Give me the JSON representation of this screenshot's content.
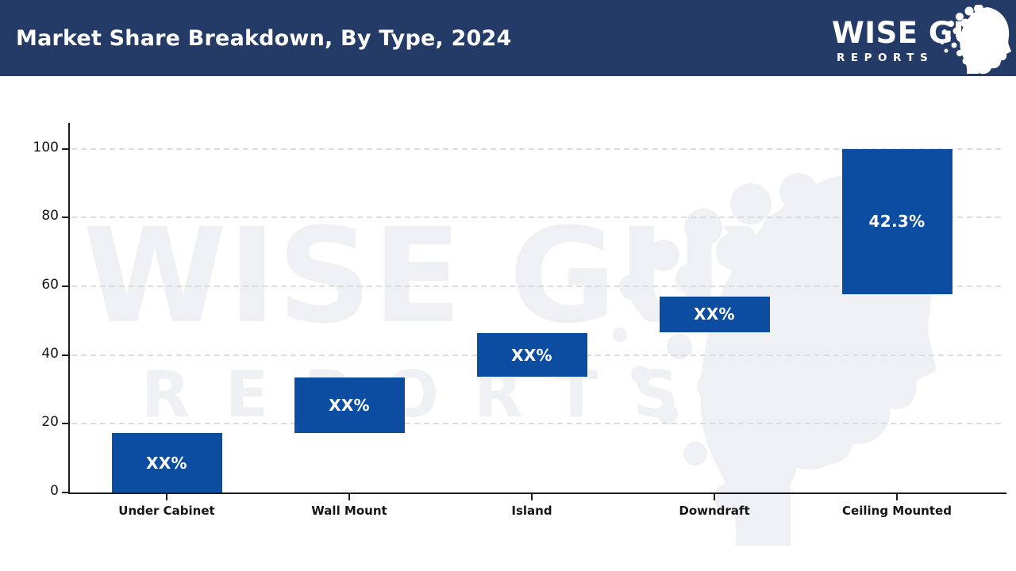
{
  "header": {
    "title": "Market Share Breakdown, By Type, 2024",
    "brand": {
      "name": "WISE GUY",
      "subtitle": "REPORTS",
      "head_icon": "head-profile-dots-icon"
    }
  },
  "watermark": {
    "line1": "WISE GUY",
    "line2": "REPORTS",
    "head_icon": "head-profile-dots-icon"
  },
  "colors": {
    "header_bg": "#243b67",
    "header_text": "#ffffff",
    "bar_fill": "#0c4da2",
    "bar_label": "#ffffff",
    "axis": "#1b1b1b",
    "tick_text": "#151515",
    "grid": "#dcdcdc",
    "watermark": "#eff0f3",
    "background": "#ffffff"
  },
  "chart_data": {
    "type": "bar",
    "variant": "waterfall",
    "title": "Market Share Breakdown, By Type, 2024",
    "xlabel": "",
    "ylabel": "",
    "ylim": [
      0,
      107.5
    ],
    "yticks": [
      0,
      20,
      40,
      60,
      80,
      100
    ],
    "grid": {
      "axis": "y",
      "style": "dashed"
    },
    "legend": null,
    "categories": [
      "Under Cabinet",
      "Wall Mount",
      "Island",
      "Downdraft",
      "Ceiling Mounted"
    ],
    "bars": [
      {
        "category": "Under Cabinet",
        "start": 0,
        "end": 17.3,
        "label": "XX%"
      },
      {
        "category": "Wall Mount",
        "start": 17.3,
        "end": 33.5,
        "label": "XX%"
      },
      {
        "category": "Island",
        "start": 33.6,
        "end": 46.4,
        "label": "XX%"
      },
      {
        "category": "Downdraft",
        "start": 46.7,
        "end": 57.1,
        "label": "XX%"
      },
      {
        "category": "Ceiling Mounted",
        "start": 57.7,
        "end": 100,
        "label": "42.3%"
      }
    ]
  }
}
